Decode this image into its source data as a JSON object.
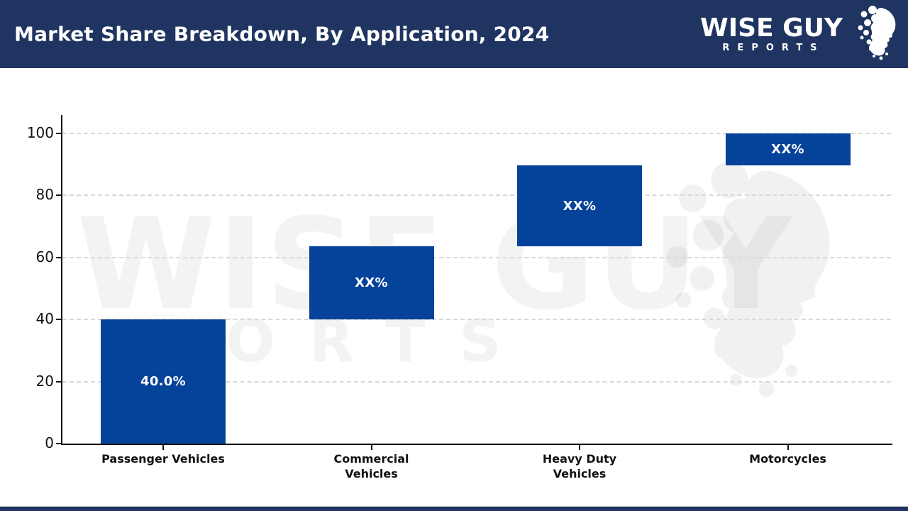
{
  "header": {
    "title": "Market Share Breakdown, By Application, 2024",
    "logo": {
      "line1": "WISE GUY",
      "line2": "REPORTS"
    }
  },
  "watermark": {
    "line1": "WISE GUY",
    "line2": "PORTS"
  },
  "chart_data": {
    "type": "bar",
    "subtype": "waterfall",
    "title": "Market Share Breakdown, By Application, 2024",
    "categories": [
      "Passenger Vehicles",
      "Commercial\nVehicles",
      "Heavy Duty\nVehicles",
      "Motorcycles"
    ],
    "segments": [
      {
        "category": "Passenger Vehicles",
        "start": 0,
        "end": 40,
        "label": "40.0%"
      },
      {
        "category": "Commercial Vehicles",
        "start": 40,
        "end": 63.5,
        "label": "XX%"
      },
      {
        "category": "Heavy Duty Vehicles",
        "start": 63.5,
        "end": 89.5,
        "label": "XX%"
      },
      {
        "category": "Motorcycles",
        "start": 89.5,
        "end": 100,
        "label": "XX%"
      }
    ],
    "yticks": [
      "0",
      "20",
      "40",
      "60",
      "80",
      "100"
    ],
    "ylim": [
      0,
      105
    ],
    "xlabel": "",
    "ylabel": "",
    "grid": "horizontal-dashed",
    "legend": "none",
    "bar_color": "#05429a"
  },
  "colors": {
    "header_bg": "#1f3461",
    "bar_blue": "#05429a",
    "gridline": "#d9d9d9",
    "axis": "#111111",
    "watermark": "#f1f1f1"
  }
}
